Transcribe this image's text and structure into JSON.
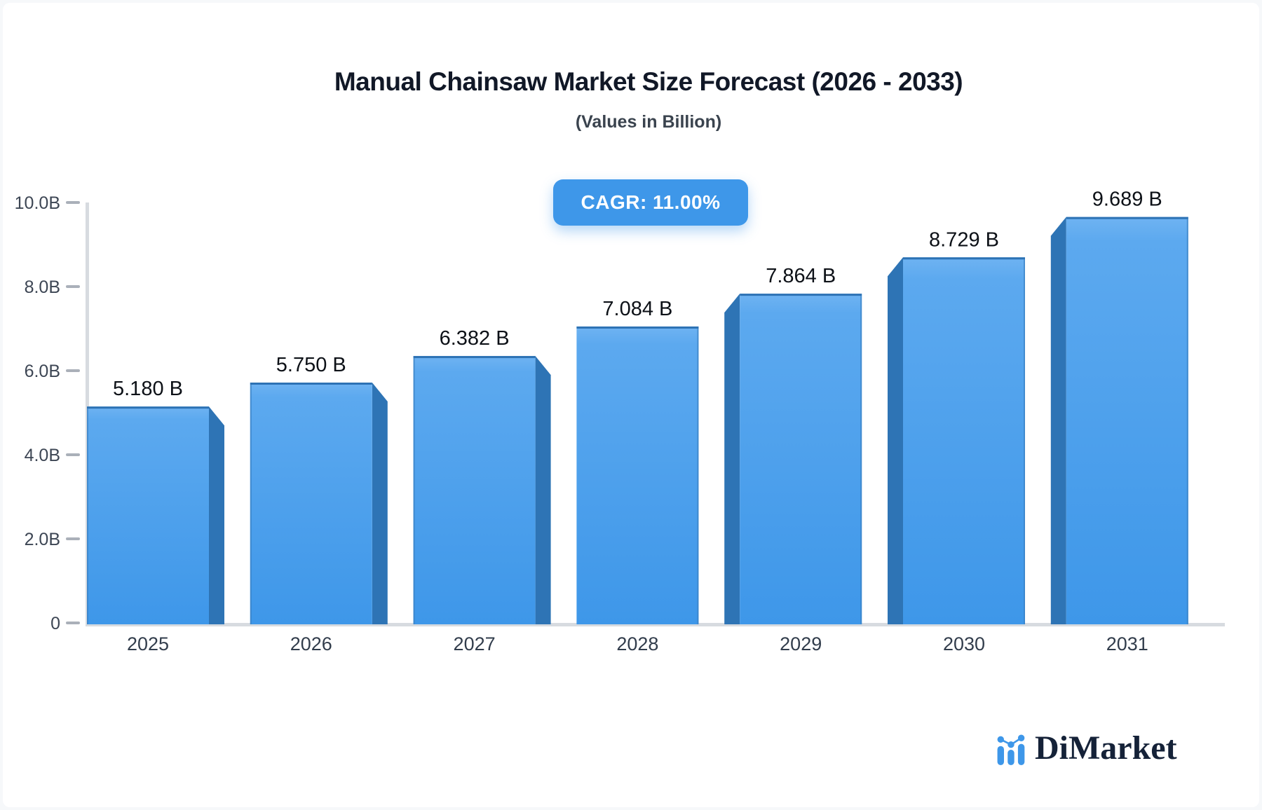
{
  "logo": {
    "brand": "DiMarket"
  },
  "colors": {
    "page_bg": "#f6f8fa",
    "card_bg": "#ffffff",
    "title_text": "#111827",
    "subtitle_text": "#3a434e",
    "badge_bg": "#3e97e9",
    "badge_text": "#ffffff",
    "bar_face_top": "#6fb3f2",
    "bar_face_mid": "#55a6ee",
    "bar_face_bottom": "#3e97e9",
    "bar_side": "#2e74b5",
    "bar_top_edge": "#2d72b4",
    "bar_outer_edge": "#3a80c2",
    "axis_line": "#d7dbe0",
    "tick_dash": "#aab0b9",
    "value_text": "#0d1117",
    "xlabel_text": "#323d4c",
    "ylabel_text": "#3d4654",
    "logo_icon": "#3e97e9",
    "logo_text": "#152238"
  },
  "chart_data": {
    "type": "bar",
    "title": "Manual Chainsaw Market Size Forecast (2026 - 2033)",
    "subtitle": "(Values in Billion)",
    "cagr_label": "CAGR: 11.00%",
    "categories": [
      "2025",
      "2026",
      "2027",
      "2028",
      "2029",
      "2030",
      "2031"
    ],
    "values": [
      5.18,
      5.75,
      6.382,
      7.084,
      7.864,
      8.729,
      9.689
    ],
    "bar_labels": [
      "5.180 B",
      "5.750 B",
      "6.382 B",
      "7.084 B",
      "7.864 B",
      "8.729 B",
      "9.689 B"
    ],
    "xlabel": "",
    "ylabel": "",
    "ylim": [
      0,
      10
    ],
    "yticks": [
      {
        "label": "0",
        "value": 0
      },
      {
        "label": "2.0B",
        "value": 2
      },
      {
        "label": "4.0B",
        "value": 4
      },
      {
        "label": "6.0B",
        "value": 6
      },
      {
        "label": "8.0B",
        "value": 8
      },
      {
        "label": "10.0B",
        "value": 10
      }
    ],
    "grid": false,
    "legend": "none",
    "bar_style": "3d-perspective-center-vanishing"
  }
}
